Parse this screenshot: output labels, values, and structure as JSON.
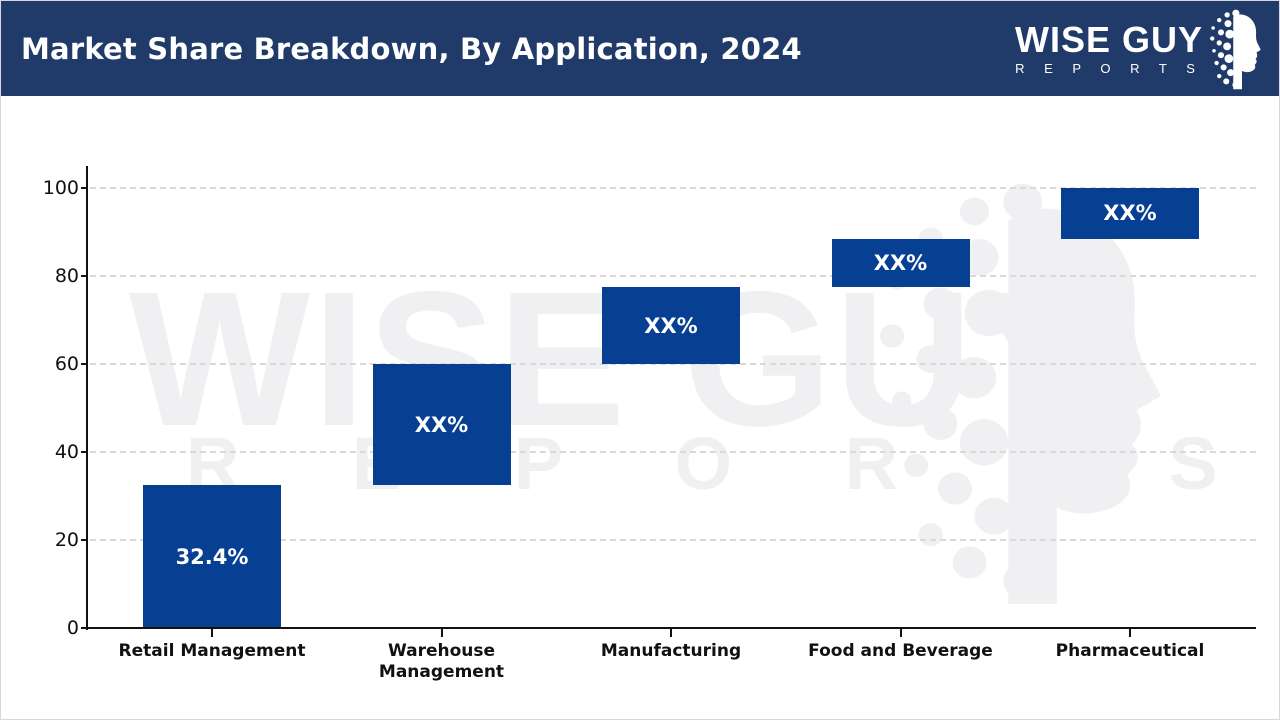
{
  "page": {
    "background": "#ffffff",
    "border_color": "#d8d8d8"
  },
  "header": {
    "title": "Market Share Breakdown, By Application, 2024",
    "background": "#203a69",
    "logo": {
      "wordmark": "WISE GUY",
      "subtitle": "R E P O R T S"
    }
  },
  "watermark": {
    "wordmark": "WISE GUY",
    "subtitle": "R E P O R T S"
  },
  "colors": {
    "bar": "#073f92",
    "bar_label": "#ffffff",
    "grid": "#d9d9d9",
    "axis": "#111111",
    "tick_label": "#111111",
    "watermark": "#f0f0f2"
  },
  "chart_data": {
    "type": "bar",
    "variant": "waterfall",
    "title": "Market Share Breakdown, By Application, 2024",
    "categories": [
      "Retail Management",
      "Warehouse\nManagement",
      "Manufacturing",
      "Food and Beverage",
      "Pharmaceutical"
    ],
    "series": [
      {
        "name": "Market share (%)",
        "starts": [
          0,
          32.4,
          60,
          77.5,
          88.5
        ],
        "ends": [
          32.4,
          60,
          77.5,
          88.5,
          100
        ]
      }
    ],
    "bar_labels": [
      "32.4%",
      "XX%",
      "XX%",
      "XX%",
      "XX%"
    ],
    "yticks": [
      0,
      20,
      40,
      60,
      80,
      100
    ],
    "ylim": [
      0,
      105
    ],
    "xlabel": "",
    "ylabel": "",
    "grid": "horizontal-dashed",
    "legend": false
  }
}
